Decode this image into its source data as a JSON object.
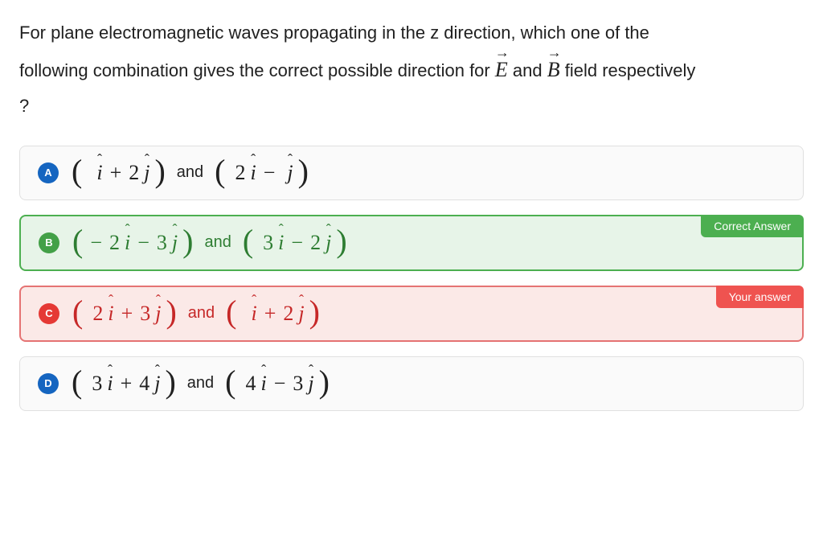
{
  "question": {
    "line1": "For plane electromagnetic waves propagating in the z direction, which one of the",
    "line2a": "following combination gives the correct possible direction for ",
    "vec1": "E",
    "mid": " and ",
    "vec2": "B",
    "line2b": " field respectively",
    "line3": "?"
  },
  "conjunction": "and",
  "tags": {
    "correct": "Correct Answer",
    "your": "Your answer"
  },
  "colors": {
    "badge_default": "#1565c0",
    "badge_correct": "#43a047",
    "badge_wrong": "#e53935",
    "tag_correct": "#4caf50",
    "tag_wrong": "#ef5350",
    "border_default": "#e0e0e0",
    "bg_default": "#fafafa",
    "bg_correct": "#e7f4e8",
    "bg_wrong": "#fbe9e7",
    "text_correct": "#2e7d32",
    "text_wrong": "#c62828"
  },
  "options": [
    {
      "letter": "A",
      "state": "default",
      "E": {
        "i_sign": "",
        "i_coef": "",
        "j_sign": "+",
        "j_coef": "2"
      },
      "B": {
        "i_sign": "",
        "i_coef": "2",
        "j_sign": "−",
        "j_coef": ""
      }
    },
    {
      "letter": "B",
      "state": "correct",
      "E": {
        "i_sign": "−",
        "i_coef": "2",
        "j_sign": "−",
        "j_coef": "3"
      },
      "B": {
        "i_sign": "",
        "i_coef": "3",
        "j_sign": "−",
        "j_coef": "2"
      }
    },
    {
      "letter": "C",
      "state": "wrong",
      "E": {
        "i_sign": "",
        "i_coef": "2",
        "j_sign": "+",
        "j_coef": "3"
      },
      "B": {
        "i_sign": "",
        "i_coef": "",
        "j_sign": "+",
        "j_coef": "2"
      }
    },
    {
      "letter": "D",
      "state": "default",
      "E": {
        "i_sign": "",
        "i_coef": "3",
        "j_sign": "+",
        "j_coef": "4"
      },
      "B": {
        "i_sign": "",
        "i_coef": "4",
        "j_sign": "−",
        "j_coef": "3"
      }
    }
  ]
}
